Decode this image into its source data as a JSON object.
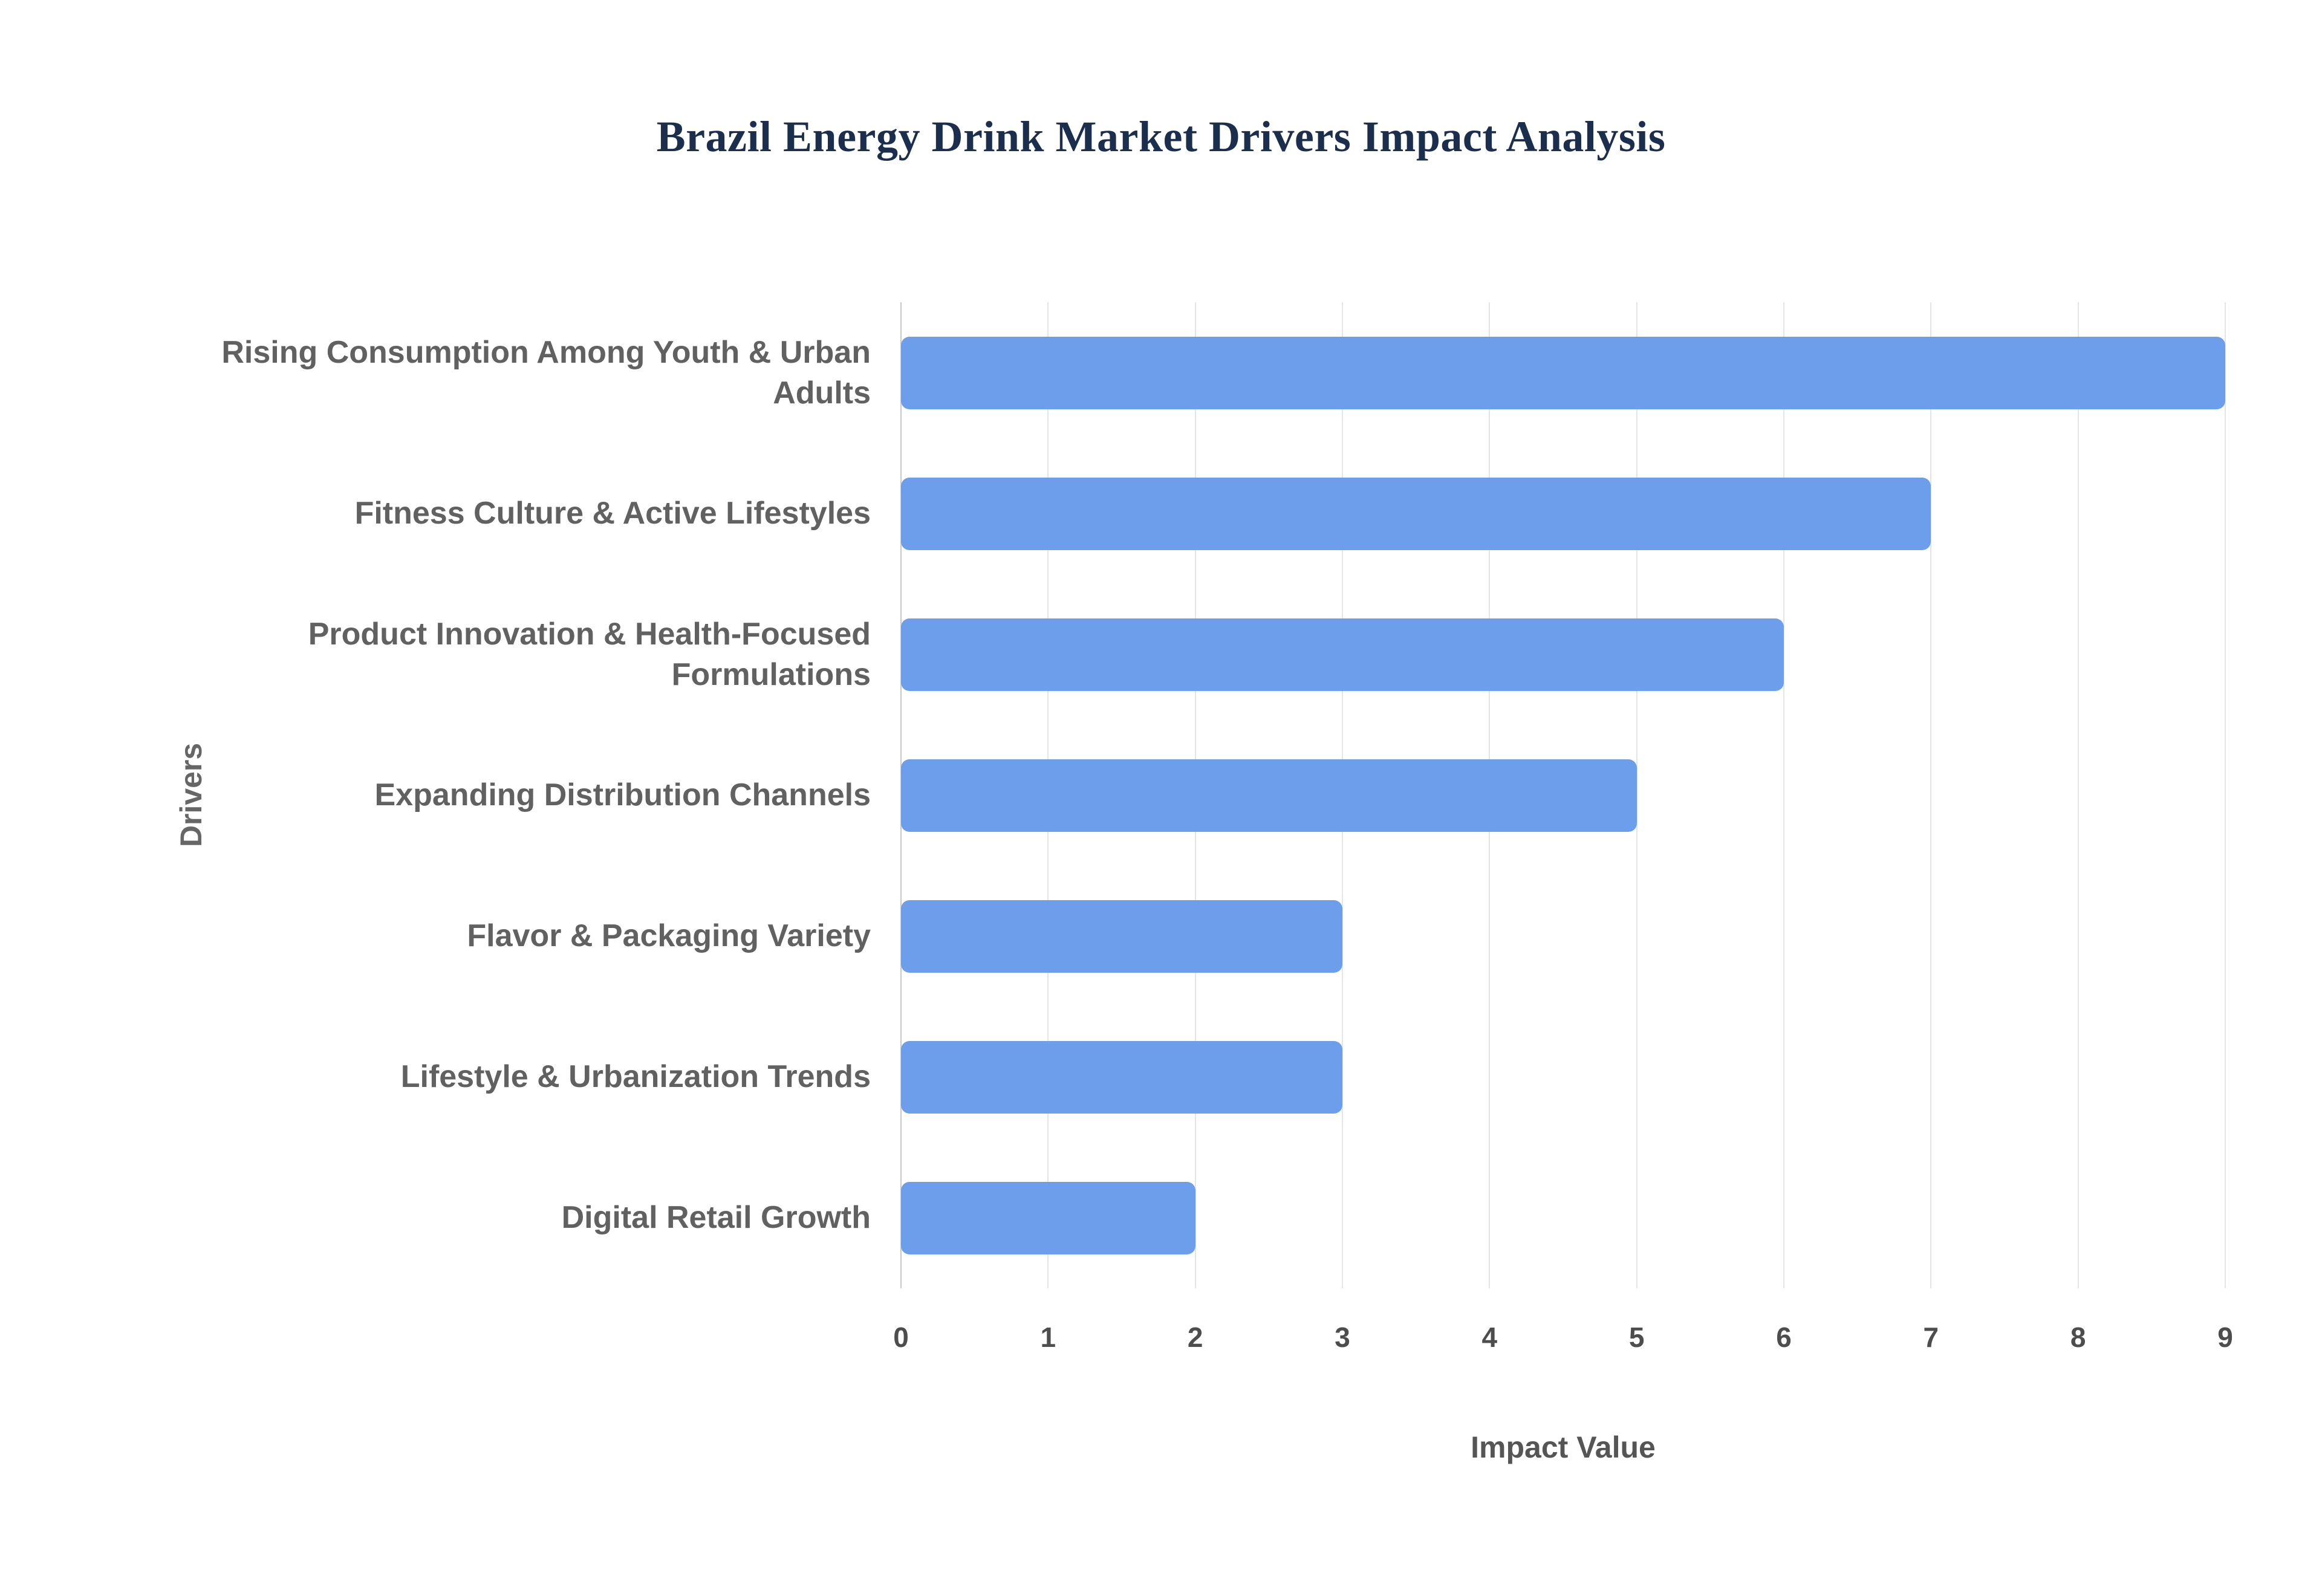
{
  "chart_data": {
    "type": "bar",
    "orientation": "horizontal",
    "title": "Brazil Energy Drink Market Drivers Impact Analysis",
    "xlabel": "Impact Value",
    "ylabel": "Drivers",
    "categories": [
      "Rising Consumption Among Youth & Urban Adults",
      "Fitness Culture & Active Lifestyles",
      "Product Innovation & Health-Focused Formulations",
      "Expanding Distribution Channels",
      "Flavor & Packaging Variety",
      "Lifestyle & Urbanization Trends",
      "Digital Retail Growth"
    ],
    "values": [
      9,
      7,
      6,
      5,
      3,
      3,
      2
    ],
    "xlim": [
      0,
      9
    ],
    "xticks": [
      0,
      1,
      2,
      3,
      4,
      5,
      6,
      7,
      8,
      9
    ],
    "grid": true,
    "legend": false,
    "bar_color": "#6d9eeb",
    "title_color": "#1c2e4e",
    "label_color": "#616161"
  }
}
